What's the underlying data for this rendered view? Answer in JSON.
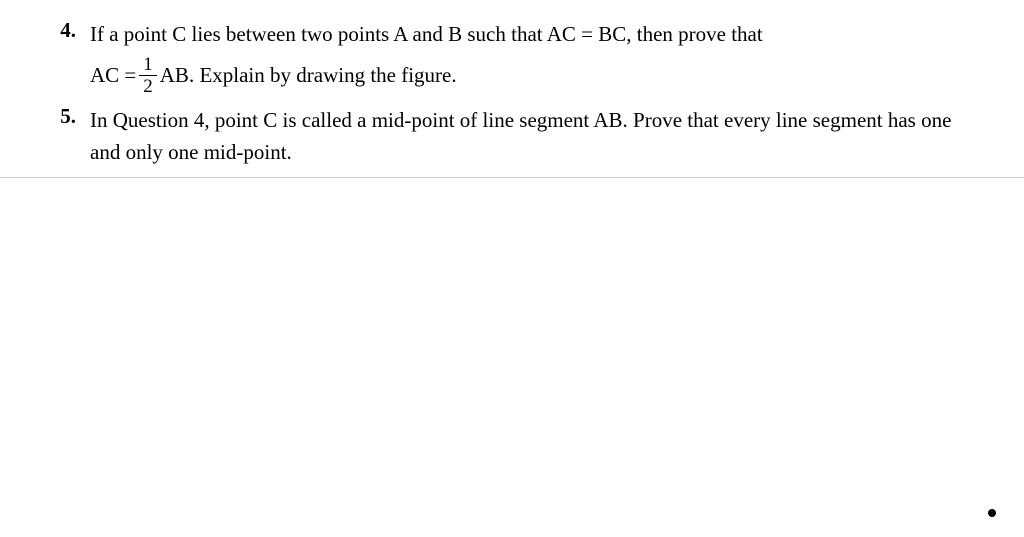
{
  "questions": [
    {
      "number": "4.",
      "line1_a": "If a point C lies between two points A and B such that AC = BC, then prove that",
      "line2_prefix": "AC =",
      "frac_num": "1",
      "frac_den": "2",
      "line2_suffix": "AB. Explain by drawing the figure."
    },
    {
      "number": "5.",
      "text": "In Question 4, point C is called a mid-point of line segment AB. Prove that every line segment has one and only one mid-point."
    }
  ],
  "colors": {
    "background": "#ffffff",
    "text": "#000000",
    "divider": "#d0d0d0"
  },
  "typography": {
    "body_fontsize": 21,
    "number_fontweight": "bold",
    "font_family": "Times New Roman"
  }
}
